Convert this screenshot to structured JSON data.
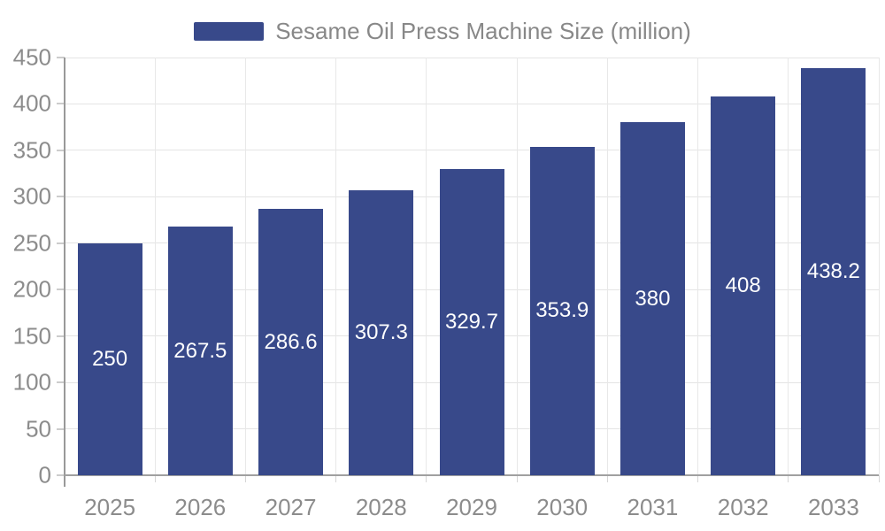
{
  "legend": {
    "items": [
      {
        "label": "Sesame Oil Press Machine Size (million)",
        "color": "#38498a"
      }
    ]
  },
  "chart_data": {
    "type": "bar",
    "title": "Sesame Oil Press Machine Size (million)",
    "categories": [
      "2025",
      "2026",
      "2027",
      "2028",
      "2029",
      "2030",
      "2031",
      "2032",
      "2033"
    ],
    "series": [
      {
        "name": "Sesame Oil Press Machine Size (million)",
        "values": [
          250,
          267.5,
          286.6,
          307.3,
          329.7,
          353.9,
          380,
          408,
          438.2
        ],
        "color": "#38498a"
      }
    ],
    "data_labels": [
      "250",
      "267.5",
      "286.6",
      "307.3",
      "329.7",
      "353.9",
      "380",
      "408",
      "438.2"
    ],
    "xlabel": "",
    "ylabel": "",
    "ylim": [
      0,
      450
    ],
    "yticks": [
      0,
      50,
      100,
      150,
      200,
      250,
      300,
      350,
      400,
      450
    ],
    "grid": true,
    "legend_position": "top",
    "colors": {
      "bar": "#38498a",
      "bar_label": "#ffffff",
      "axis_label": "#8c8c8c",
      "legend_text": "#888888",
      "axis_line": "#999999",
      "grid_line": "#e4e4e4",
      "tick": "#cccccc",
      "background": "#ffffff"
    }
  }
}
